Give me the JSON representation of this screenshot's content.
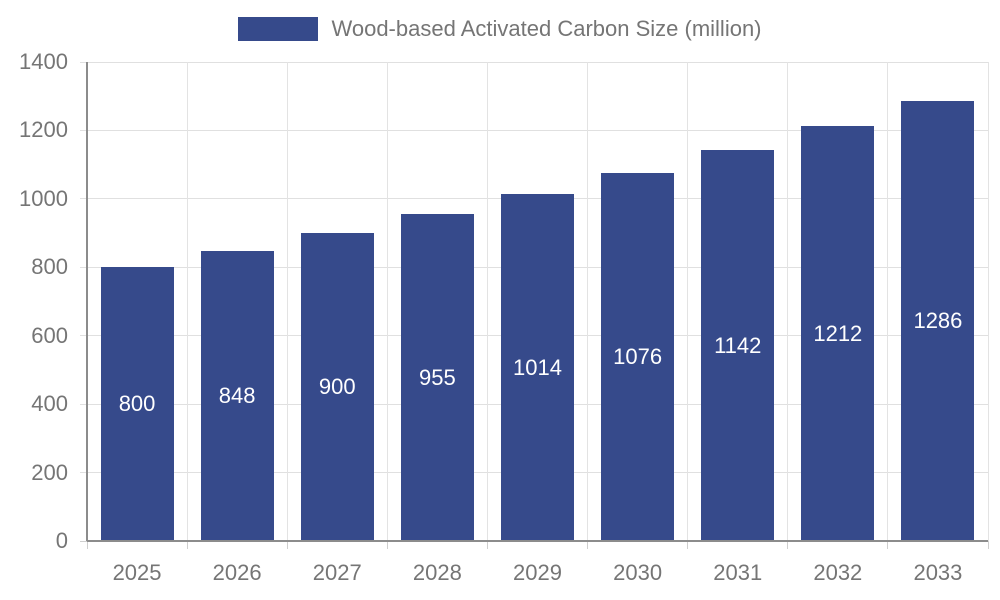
{
  "chart_data": {
    "type": "bar",
    "title": "Wood-based Activated Carbon Size (million)",
    "categories": [
      "2025",
      "2026",
      "2027",
      "2028",
      "2029",
      "2030",
      "2031",
      "2032",
      "2033"
    ],
    "values": [
      800,
      848,
      900,
      955,
      1014,
      1076,
      1142,
      1212,
      1286
    ],
    "xlabel": "",
    "ylabel": "",
    "ylim": [
      0,
      1400
    ],
    "yticks": [
      0,
      200,
      400,
      600,
      800,
      1000,
      1200,
      1400
    ],
    "grid": true,
    "legend_position": "top-center",
    "value_labels": "inside-center",
    "colors": {
      "bar": "#364A8B",
      "value_label": "#ffffff",
      "tick_label": "#757575",
      "axis_line": "#8c8c8c",
      "gridline": "#e0e0e0",
      "background": "#ffffff"
    }
  }
}
